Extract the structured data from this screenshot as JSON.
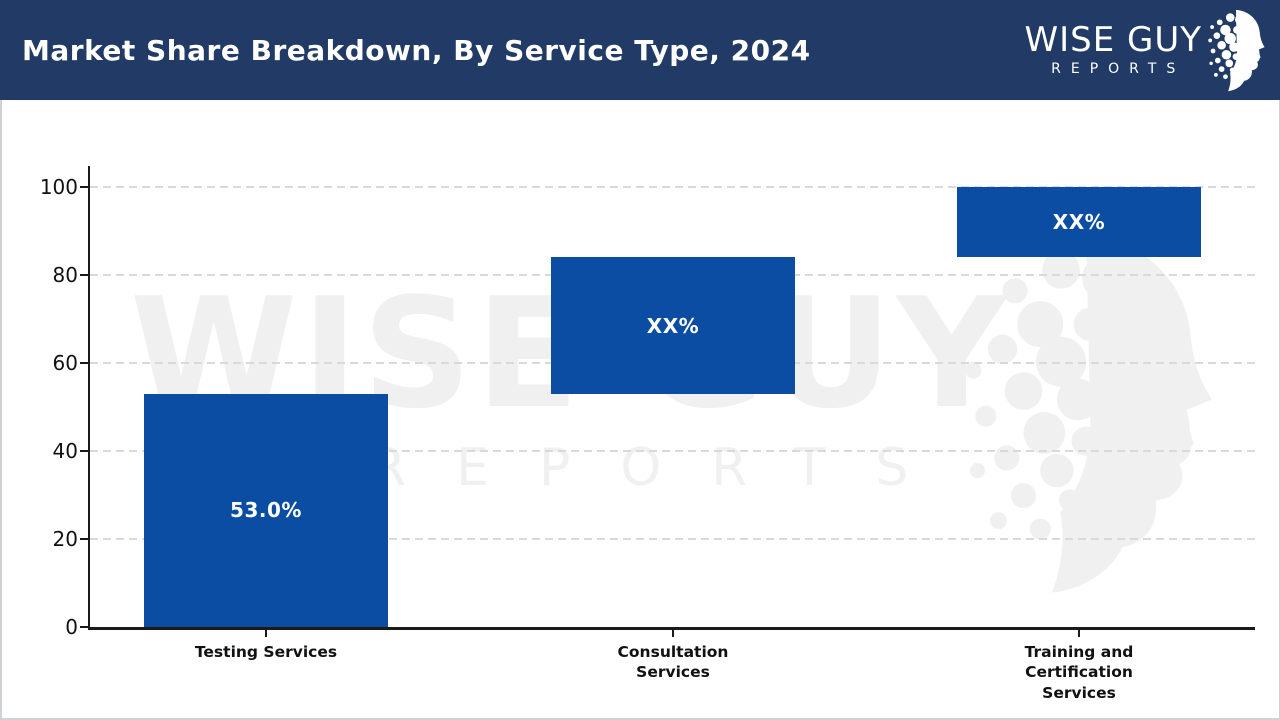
{
  "header": {
    "title": "Market Share Breakdown, By Service Type, 2024",
    "logo": {
      "wordmark": "WISE GUY",
      "subtext": "REPORTS"
    }
  },
  "watermark": {
    "wordmark": "WISE GUY",
    "subtext": "REPORTS"
  },
  "colors": {
    "header_bg": "#213a66",
    "bar": "#0b4da2",
    "grid": "#d9d9d9",
    "axis": "#1a1a1a",
    "watermark": "#f0f0f0",
    "bar_label": "#ffffff",
    "frame": "#cfd2d6"
  },
  "chart_data": {
    "type": "bar",
    "subtype": "waterfall",
    "title": "Market Share Breakdown, By Service Type, 2024",
    "categories": [
      "Testing Services",
      "Consultation\nServices",
      "Training and\nCertification\nServices"
    ],
    "series": [
      {
        "category": "Testing Services",
        "start": 0,
        "end": 53,
        "label": "53.0%"
      },
      {
        "category": "Consultation\nServices",
        "start": 53,
        "end": 84,
        "label": "XX%"
      },
      {
        "category": "Training and\nCertification\nServices",
        "start": 84,
        "end": 100,
        "label": "XX%"
      }
    ],
    "ylim": [
      0,
      100
    ],
    "yticks": [
      0,
      20,
      40,
      60,
      80,
      100
    ],
    "xlabel": "",
    "ylabel": "",
    "grid": "horizontal-dashed",
    "legend": "none"
  }
}
